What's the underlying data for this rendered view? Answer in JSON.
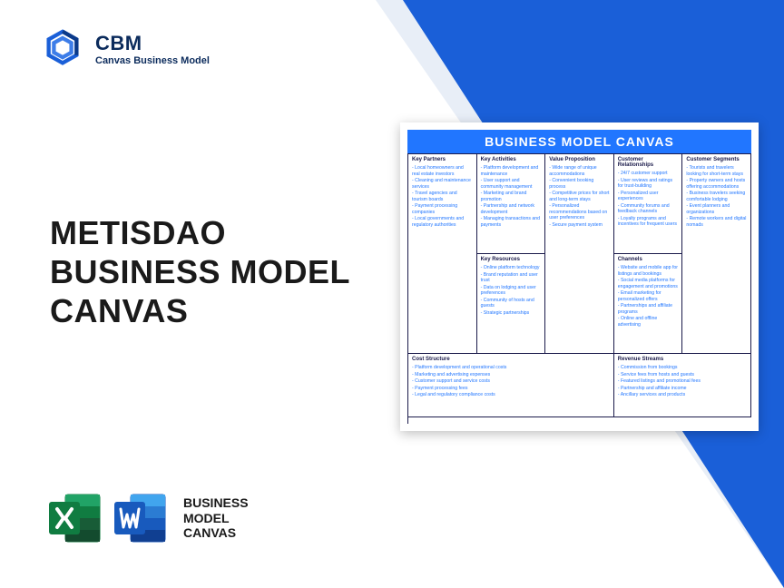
{
  "brand": {
    "title": "CBM",
    "subtitle": "Canvas Business Model"
  },
  "main_title": {
    "line1": "METISDAO",
    "line2": "BUSINESS MODEL",
    "line3": "CANVAS"
  },
  "bottom_label": {
    "line1": "BUSINESS",
    "line2": "MODEL",
    "line3": "CANVAS"
  },
  "canvas": {
    "title": "BUSINESS MODEL CANVAS",
    "cells": {
      "key_partners": {
        "heading": "Key Partners",
        "items": [
          "Local homeowners and real estate investors",
          "Cleaning and maintenance services",
          "Travel agencies and tourism boards",
          "Payment processing companies",
          "Local governments and regulatory authorities"
        ]
      },
      "key_activities": {
        "heading": "Key Activities",
        "items": [
          "Platform development and maintenance",
          "User support and community management",
          "Marketing and brand promotion",
          "Partnership and network development",
          "Managing transactions and payments"
        ]
      },
      "key_resources": {
        "heading": "Key Resources",
        "items": [
          "Online platform technology",
          "Brand reputation and user trust",
          "Data on lodging and user preferences",
          "Community of hosts and guests",
          "Strategic partnerships"
        ]
      },
      "value_proposition": {
        "heading": "Value Proposition",
        "items": [
          "Wide range of unique accommodations",
          "Convenient booking process",
          "Competitive prices for short and long-term stays",
          "Personalized recommendations based on user preferences",
          "Secure payment system"
        ]
      },
      "customer_relationships": {
        "heading": "Customer Relationships",
        "items": [
          "24/7 customer support",
          "User reviews and ratings for trust-building",
          "Personalized user experiences",
          "Community forums and feedback channels",
          "Loyalty programs and incentives for frequent users"
        ]
      },
      "channels": {
        "heading": "Channels",
        "items": [
          "Website and mobile app for listings and bookings",
          "Social media platforms for engagement and promotions",
          "Email marketing for personalized offers",
          "Partnerships and affiliate programs",
          "Online and offline advertising"
        ]
      },
      "customer_segments": {
        "heading": "Customer Segments",
        "items": [
          "Tourists and travelers looking for short-term stays",
          "Property owners and hosts offering accommodations",
          "Business travelers seeking comfortable lodging",
          "Event planners and organizations",
          "Remote workers and digital nomads"
        ]
      },
      "cost_structure": {
        "heading": "Cost Structure",
        "items": [
          "Platform development and operational costs",
          "Marketing and advertising expenses",
          "Customer support and service costs",
          "Payment processing fees",
          "Legal and regulatory compliance costs"
        ]
      },
      "revenue_streams": {
        "heading": "Revenue Streams",
        "items": [
          "Commission from bookings",
          "Service fees from hosts and guests",
          "Featured listings and promotional fees",
          "Partnership and affiliate income",
          "Ancillary services and products"
        ]
      }
    }
  },
  "colors": {
    "primary_blue": "#1a5fd8",
    "canvas_header": "#2176ff",
    "excel_green": "#107c41",
    "word_blue": "#185abd"
  }
}
